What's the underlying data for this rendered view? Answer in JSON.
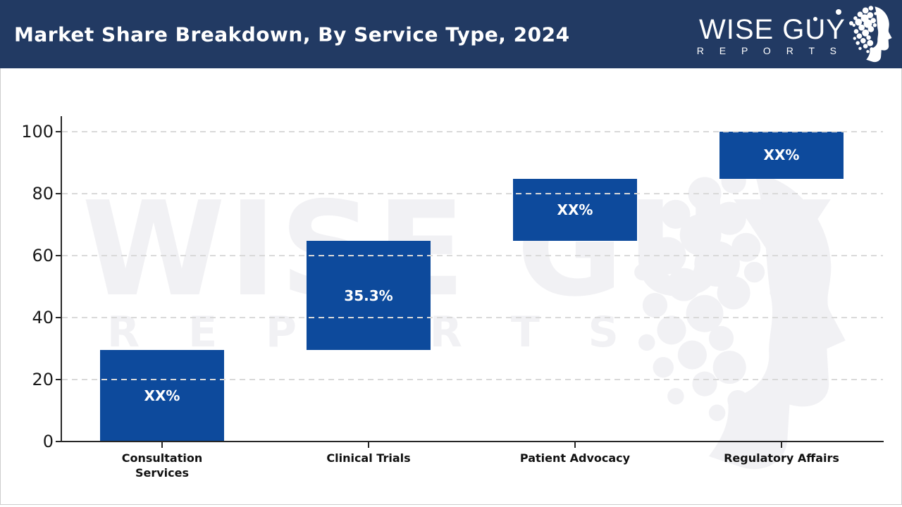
{
  "header": {
    "title": "Market Share Breakdown, By Service Type, 2024",
    "logo": {
      "name": "WISE GUY",
      "tagline": "R E P O R T S"
    }
  },
  "watermark": {
    "big_text": "WISE GUY",
    "small_text": "R E P O R T S"
  },
  "colors": {
    "header_bg": "#223a63",
    "bar": "#0d4a9c",
    "grid": "#d9d9d9",
    "axis": "#262626",
    "watermark": "#f1f1f4",
    "bar_label": "#ffffff"
  },
  "chart_data": {
    "type": "bar",
    "subtype": "floating-waterfall",
    "title": "Market Share Breakdown, By Service Type, 2024",
    "categories": [
      "Consultation\nServices",
      "Clinical Trials",
      "Patient Advocacy",
      "Regulatory Affairs"
    ],
    "series": [
      {
        "name": "Market share (%)",
        "segments": [
          {
            "category": "Consultation Services",
            "start": 0,
            "end": 29.5,
            "label": "XX%"
          },
          {
            "category": "Clinical Trials",
            "start": 29.5,
            "end": 64.8,
            "label": "35.3%"
          },
          {
            "category": "Patient Advocacy",
            "start": 64.8,
            "end": 84.8,
            "label": "XX%"
          },
          {
            "category": "Regulatory Affairs",
            "start": 84.8,
            "end": 100,
            "label": "XX%"
          }
        ]
      }
    ],
    "xlabel": "",
    "ylabel": "",
    "ylim": [
      0,
      105
    ],
    "yticks": [
      0,
      20,
      40,
      60,
      80,
      100
    ],
    "grid": "horizontal-dashed-above-bars",
    "legend": "none"
  }
}
